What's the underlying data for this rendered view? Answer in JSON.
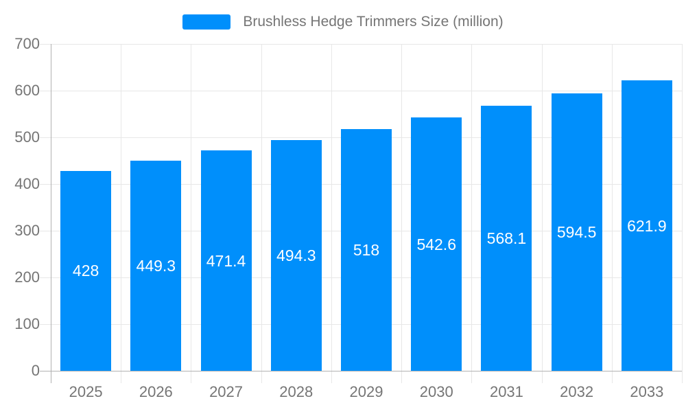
{
  "chart_data": {
    "type": "bar",
    "title": "Brushless Hedge Trimmers Size (million)",
    "categories": [
      "2025",
      "2026",
      "2027",
      "2028",
      "2029",
      "2030",
      "2031",
      "2032",
      "2033"
    ],
    "series": [
      {
        "name": "Brushless Hedge Trimmers Size (million)",
        "values": [
          428,
          449.3,
          471.4,
          494.3,
          518,
          542.6,
          568.1,
          594.5,
          621.9
        ]
      }
    ],
    "value_labels": [
      "428",
      "449.3",
      "471.4",
      "494.3",
      "518",
      "542.6",
      "568.1",
      "594.5",
      "621.9"
    ],
    "xlabel": "",
    "ylabel": "",
    "ylim": [
      0,
      700
    ],
    "yticks": [
      0,
      100,
      200,
      300,
      400,
      500,
      600,
      700
    ],
    "grid": true,
    "legend_position": "top",
    "colors": {
      "bar": "#008ffb",
      "value_label": "#ffffff",
      "axis_text": "#757575",
      "grid": "#e7e7e7",
      "axis_line": "#b1b1b1",
      "background": "#ffffff"
    }
  }
}
